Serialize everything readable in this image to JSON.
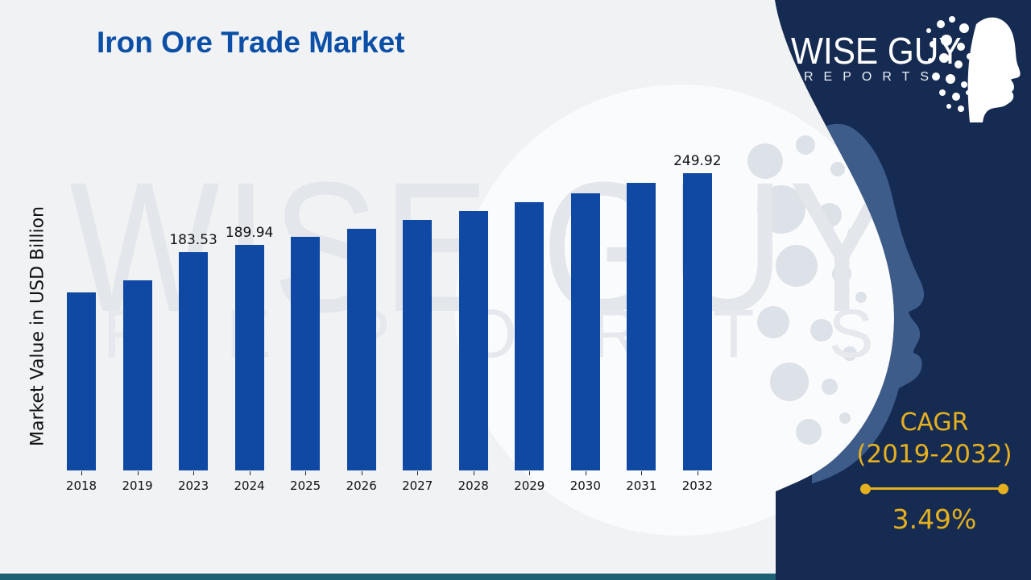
{
  "page_title": "Iron Ore Trade Market",
  "logo": {
    "name": "WISE GUY",
    "sub": "REPORTS",
    "face_icon": "head-profile-with-dots"
  },
  "watermark": {
    "name": "WISE GUY",
    "sub": "REPORTS"
  },
  "chart_data": {
    "type": "bar",
    "title": "Iron Ore Trade Market",
    "xlabel": "",
    "ylabel": "Market Value in USD Billion",
    "categories": [
      "2018",
      "2019",
      "2023",
      "2024",
      "2025",
      "2026",
      "2027",
      "2028",
      "2029",
      "2030",
      "2031",
      "2032"
    ],
    "values": [
      149.5,
      160.0,
      183.53,
      189.94,
      196.57,
      203.43,
      210.53,
      217.88,
      225.48,
      233.35,
      241.49,
      249.92
    ],
    "data_labels": {
      "2023": "183.53",
      "2024": "189.94",
      "2032": "249.92"
    },
    "bar_color": "#0f49a3",
    "ylim": [
      0,
      265
    ],
    "grid": false,
    "legend": false
  },
  "cagr": {
    "heading": "CAGR",
    "range": "(2019-2032)",
    "value": "3.49%"
  },
  "colors": {
    "title_blue": "#0b4fa6",
    "bar_blue": "#0f49a3",
    "navy_panel": "#162b52",
    "face_watermark_blue": "#3e5c8a",
    "accent_yellow": "#e5b01e",
    "teal_bottom_bar": "#1f6174",
    "background": "#f1f2f4"
  }
}
